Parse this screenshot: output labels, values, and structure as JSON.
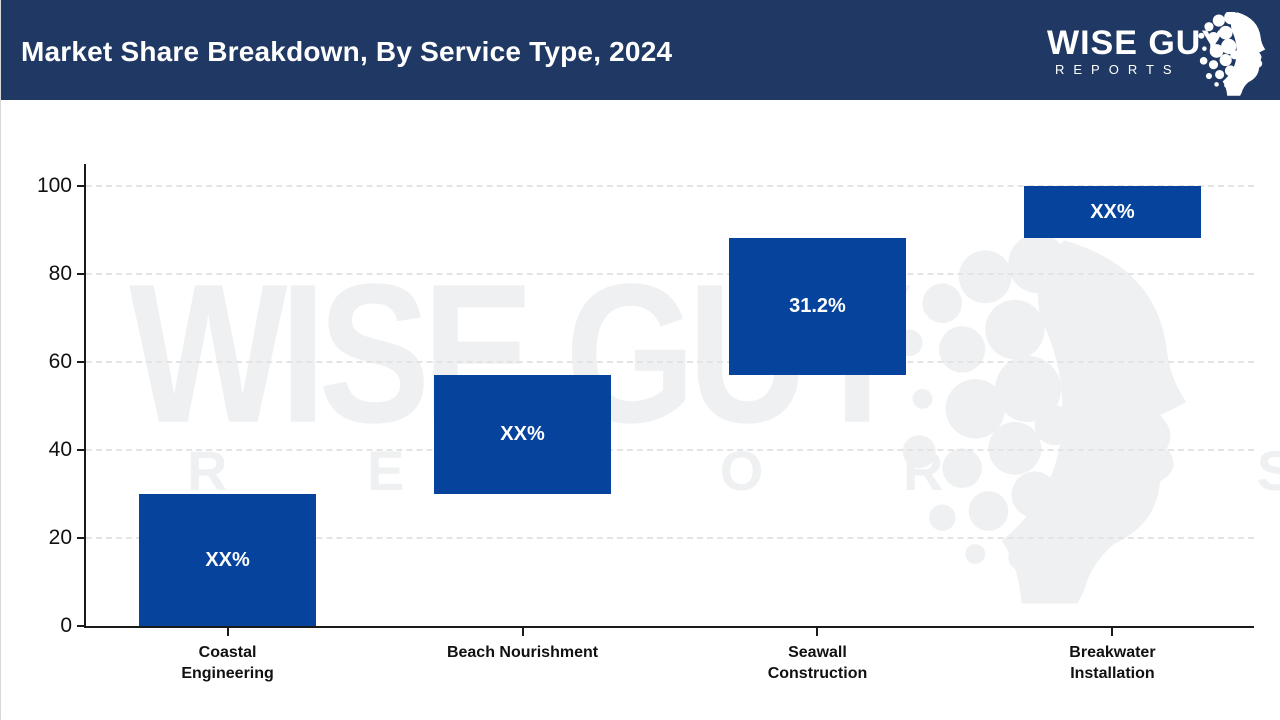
{
  "header": {
    "title": "Market Share Breakdown, By Service Type, 2024",
    "background_color": "#1f3864",
    "logo": {
      "line1": "WISE GUY",
      "line2": "REPORTS"
    }
  },
  "watermark": {
    "line1": "WISE GUY",
    "line2": "R E P O R T S"
  },
  "chart_data": {
    "type": "bar",
    "subtype": "waterfall",
    "title": "Market Share Breakdown, By Service Type, 2024",
    "categories": [
      "Coastal Engineering",
      "Beach Nourishment",
      "Seawall Construction",
      "Breakwater Installation"
    ],
    "category_lines": [
      [
        "Coastal",
        "Engineering"
      ],
      [
        "Beach Nourishment"
      ],
      [
        "Seawall",
        "Construction"
      ],
      [
        "Breakwater",
        "Installation"
      ]
    ],
    "series": [
      {
        "name": "Market Share (%)",
        "segments": [
          {
            "category": "Coastal Engineering",
            "start": 0,
            "end": 30,
            "label": "XX%"
          },
          {
            "category": "Beach Nourishment",
            "start": 30,
            "end": 57,
            "label": "XX%"
          },
          {
            "category": "Seawall Construction",
            "start": 57,
            "end": 88.2,
            "label": "31.2%"
          },
          {
            "category": "Breakwater Installation",
            "start": 88.2,
            "end": 100,
            "label": "XX%"
          }
        ]
      }
    ],
    "bar_color": "#05439c",
    "bar_label_color": "#ffffff",
    "ylim": [
      0,
      105
    ],
    "yticks": [
      0,
      20,
      40,
      60,
      80,
      100
    ],
    "grid": "horizontal-dashed",
    "grid_color": "#e4e4e4",
    "legend": "none",
    "xlabel": "",
    "ylabel": ""
  }
}
